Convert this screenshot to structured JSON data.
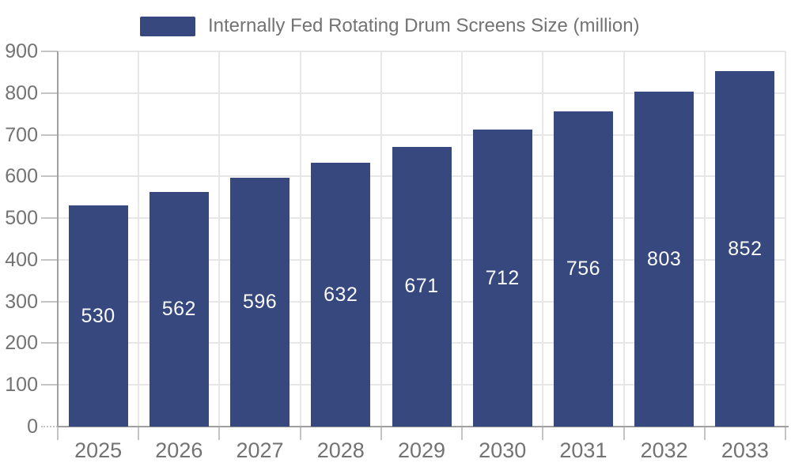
{
  "legend": {
    "label": "Internally Fed Rotating Drum Screens Size (million)",
    "swatch_color": "#36487E"
  },
  "chart_data": {
    "type": "bar",
    "title": "Internally Fed Rotating Drum Screens Size (million)",
    "series_name": "Internally Fed Rotating Drum Screens Size (million)",
    "categories": [
      "2025",
      "2026",
      "2027",
      "2028",
      "2029",
      "2030",
      "2031",
      "2032",
      "2033"
    ],
    "values": [
      530,
      562,
      596,
      632,
      671,
      712,
      756,
      803,
      852
    ],
    "xlabel": "",
    "ylabel": "",
    "ylim": [
      0,
      900
    ],
    "ytick_interval": 100,
    "yticks": [
      0,
      100,
      200,
      300,
      400,
      500,
      600,
      700,
      800,
      900
    ],
    "grid": true,
    "legend_position": "top-left",
    "value_label_position": "inside-center",
    "colors": {
      "bar": "#36487E",
      "value_label": "#FBFBFB",
      "axis_text": "#737373",
      "grid_line": "#E7E7E7",
      "tick_line": "#C4C4C4",
      "axis_line": "#A0A0A0",
      "background": "#FFFFFF"
    }
  }
}
